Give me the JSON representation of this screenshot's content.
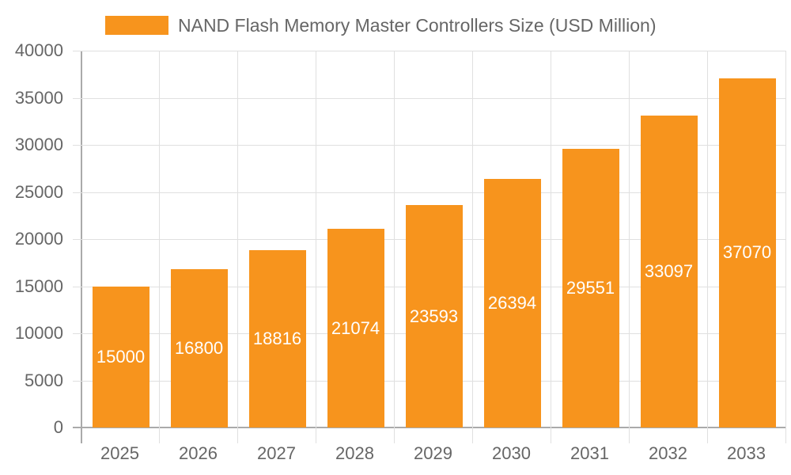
{
  "chart_data": {
    "type": "bar",
    "title": "",
    "xlabel": "",
    "ylabel": "",
    "ylim": [
      0,
      40000
    ],
    "yticks": [
      0,
      5000,
      10000,
      15000,
      20000,
      25000,
      30000,
      35000,
      40000
    ],
    "categories": [
      "2025",
      "2026",
      "2027",
      "2028",
      "2029",
      "2030",
      "2031",
      "2032",
      "2033"
    ],
    "series": [
      {
        "name": "NAND Flash Memory Master Controllers Size (USD Million)",
        "color": "#f7941d",
        "values": [
          15000,
          16800,
          18816,
          21074,
          23593,
          26394,
          29551,
          33097,
          37070
        ]
      }
    ],
    "legend_position": "top",
    "grid": true,
    "data_labels": true
  },
  "legend": {
    "label": "NAND Flash Memory Master Controllers Size (USD Million)"
  }
}
